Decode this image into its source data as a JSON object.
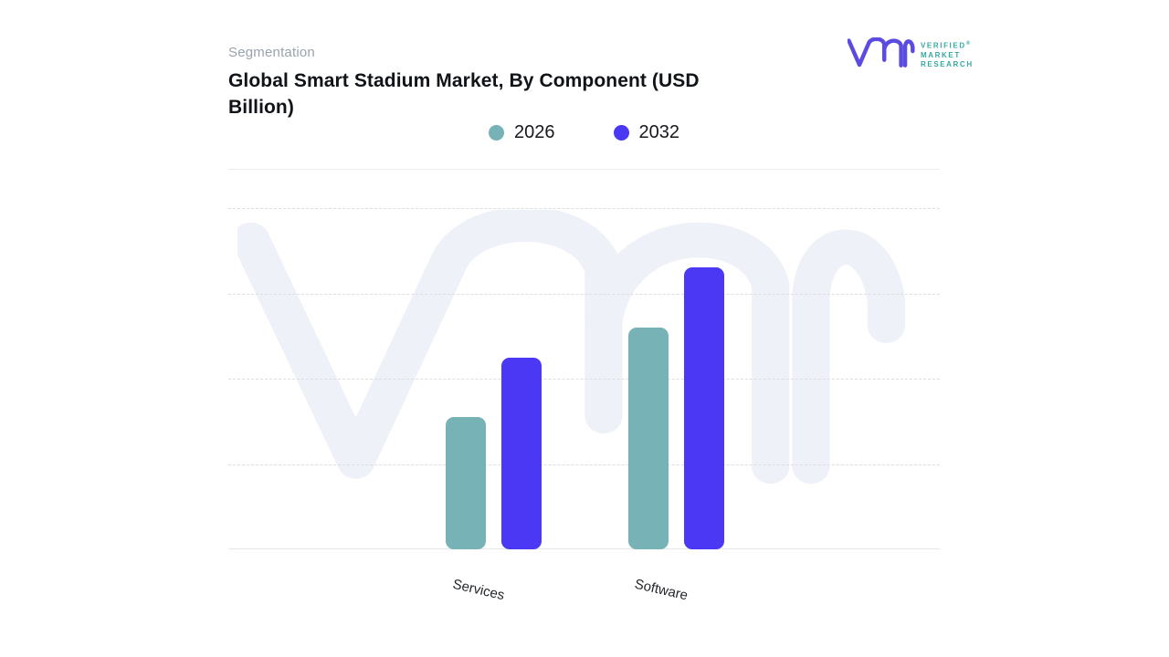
{
  "header": {
    "eyebrow": "Segmentation",
    "title": "Global Smart Stadium Market, By Component (USD Billion)"
  },
  "brand": {
    "logo_glyph": "vmr",
    "name_line1": "VERIFIED",
    "registered_mark": "®",
    "name_line2": "MARKET",
    "name_line3": "RESEARCH",
    "logo_color": "#5B4BE0",
    "text_color": "#38A8A4"
  },
  "chart_data": {
    "type": "bar",
    "title": "Global Smart Stadium Market, By Component (USD Billion)",
    "categories": [
      "Services",
      "Software"
    ],
    "series": [
      {
        "name": "2026",
        "color": "#77B3B6",
        "values": [
          1.55,
          2.6
        ]
      },
      {
        "name": "2032",
        "color": "#4A38F5",
        "values": [
          2.25,
          3.3
        ]
      }
    ],
    "xlabel": "",
    "ylabel": "",
    "ylim": [
      0,
      4
    ],
    "y_ticks_labeled": false,
    "units": "relative gridline intervals (y-axis numeric labels not shown in image)",
    "grid": "horizontal dashed",
    "legend_position": "top-center",
    "background_watermark": "vmr logo",
    "watermark_color": "#EFF1F8"
  }
}
